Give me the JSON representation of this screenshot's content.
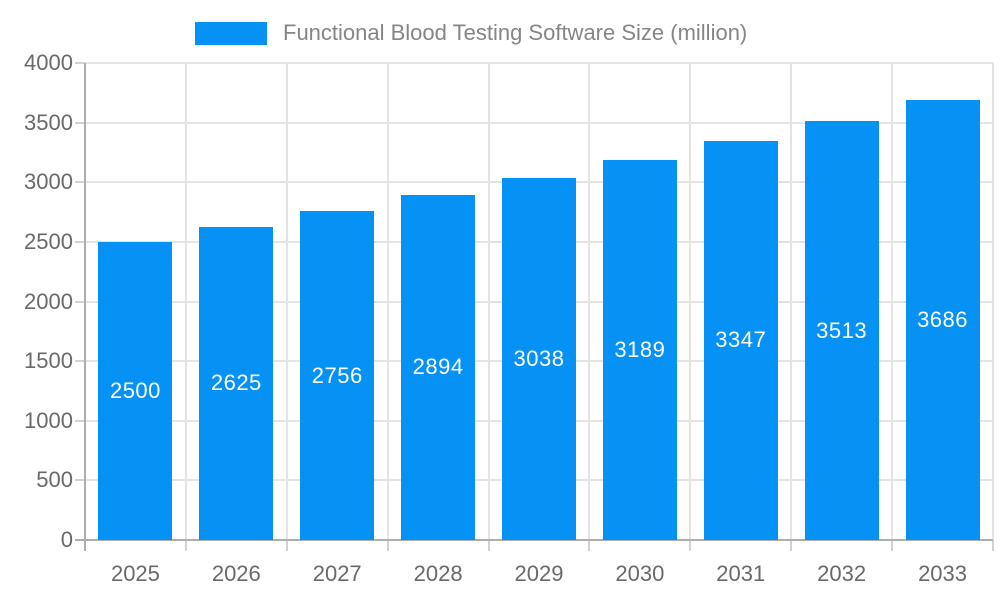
{
  "legend": {
    "label": "Functional Blood Testing Software Size (million)"
  },
  "chart_data": {
    "type": "bar",
    "title": "Functional Blood Testing Software Size (million)",
    "series_name": "Functional Blood Testing Software Size (million)",
    "categories": [
      "2025",
      "2026",
      "2027",
      "2028",
      "2029",
      "2030",
      "2031",
      "2032",
      "2033"
    ],
    "values": [
      2500,
      2625,
      2756,
      2894,
      3038,
      3189,
      3347,
      3513,
      3686
    ],
    "xlabel": "",
    "ylabel": "",
    "ylim": [
      0,
      4000
    ],
    "ytick_step": 500,
    "yticks": [
      0,
      500,
      1000,
      1500,
      2000,
      2500,
      3000,
      3500,
      4000
    ],
    "grid": true,
    "legend_position": "top",
    "data_labels_position": "inside-center",
    "colors": {
      "bar": "#0691F5",
      "bar_label": "#FFFFFF",
      "gridline": "#E4E4E4",
      "axis_line": "#ADADAD",
      "tick_mark": "#D2D2D2",
      "axis_label": "#696969",
      "legend_label": "#858585"
    }
  }
}
